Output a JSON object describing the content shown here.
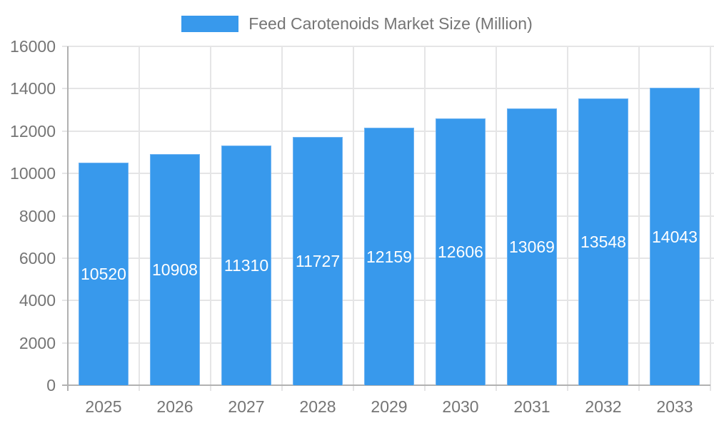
{
  "legend": {
    "label": "Feed Carotenoids Market Size (Million)"
  },
  "colors": {
    "bar": "#3899ec",
    "bar_border": "#6fb3f2",
    "grid": "#e5e5e6",
    "axis": "#b1b1b1",
    "text": "#757575",
    "value_label": "#ffffff",
    "background": "#ffffff"
  },
  "chart_data": {
    "type": "bar",
    "title": "Feed Carotenoids Market Size (Million)",
    "categories": [
      "2025",
      "2026",
      "2027",
      "2028",
      "2029",
      "2030",
      "2031",
      "2032",
      "2033"
    ],
    "values": [
      10520,
      10908,
      11310,
      11727,
      12159,
      12606,
      13069,
      13548,
      14043
    ],
    "xlabel": "",
    "ylabel": "",
    "ylim": [
      0,
      16000
    ],
    "ytick_step": 2000,
    "grid": true,
    "legend_position": "top",
    "value_labels": "inside-center"
  }
}
